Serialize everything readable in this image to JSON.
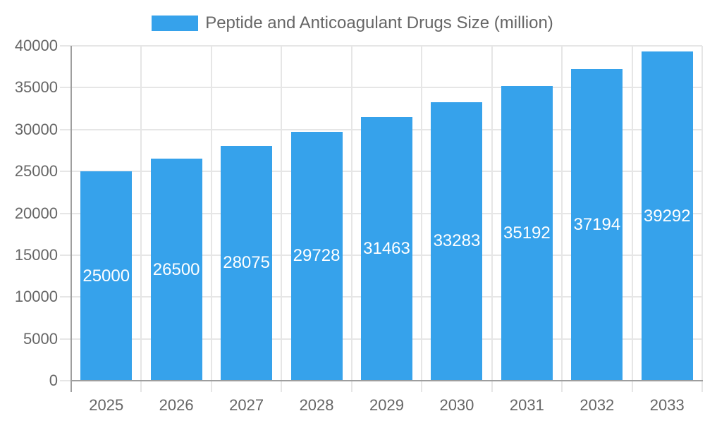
{
  "chart_data": {
    "type": "bar",
    "title": "Peptide and Anticoagulant Drugs Size (million)",
    "legend_label": "Peptide and Anticoagulant Drugs Size (million)",
    "legend_position": "top",
    "categories": [
      "2025",
      "2026",
      "2027",
      "2028",
      "2029",
      "2030",
      "2031",
      "2032",
      "2033"
    ],
    "values": [
      25000,
      26500,
      28075,
      29728,
      31463,
      33283,
      35192,
      37194,
      39292
    ],
    "value_labels": [
      "25000",
      "26500",
      "28075",
      "29728",
      "31463",
      "33283",
      "35192",
      "37194",
      "39292"
    ],
    "xlabel": "",
    "ylabel": "",
    "ylim": [
      0,
      40000
    ],
    "ytick_step": 5000,
    "ytick_labels": [
      "0",
      "5000",
      "10000",
      "15000",
      "20000",
      "25000",
      "30000",
      "35000",
      "40000"
    ],
    "grid": true,
    "colors": {
      "bar": "#36A2EB",
      "grid_line": "#E6E6E6",
      "axis_line": "#9E9E9E",
      "tick_label": "#666666",
      "value_label": "#FFFFFF",
      "background": "#FFFFFF"
    }
  }
}
